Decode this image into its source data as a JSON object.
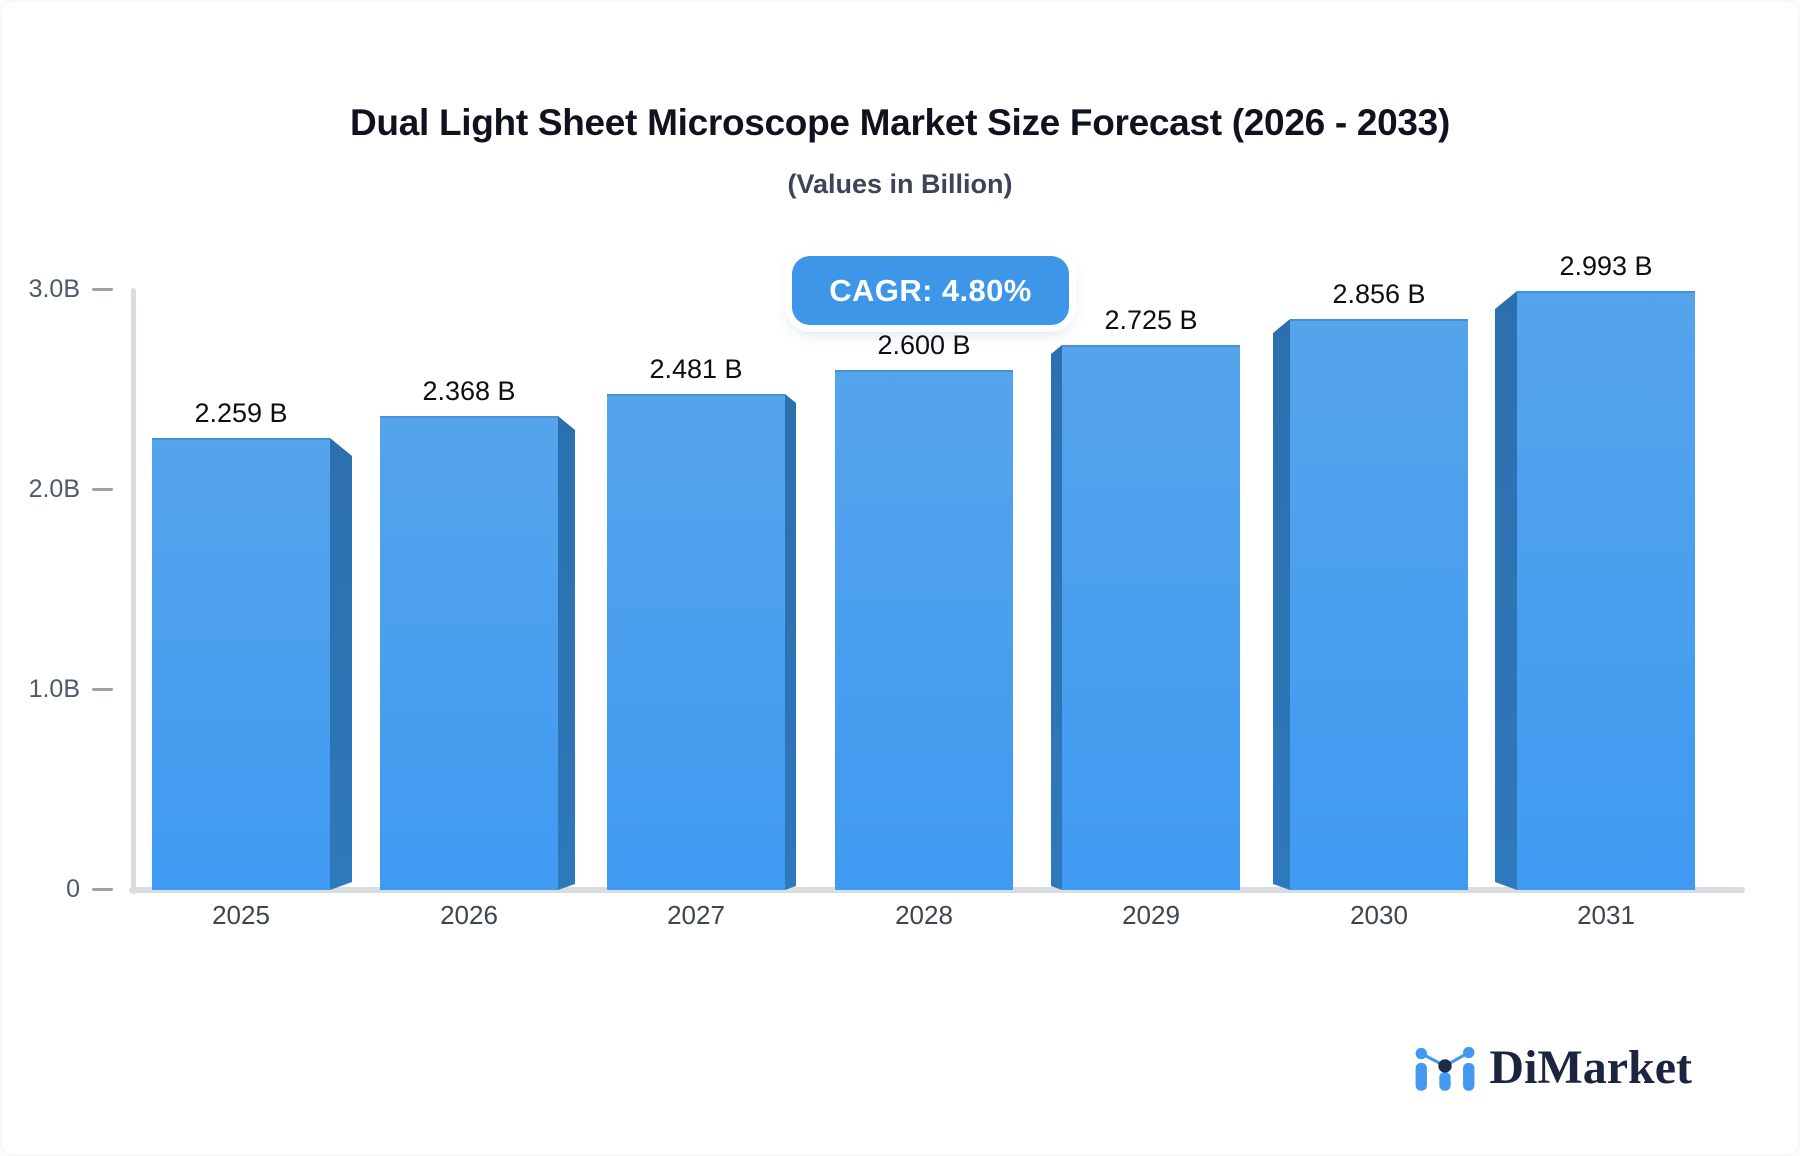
{
  "header": {
    "title": "Dual Light Sheet Microscope Market Size Forecast (2026 - 2033)",
    "subtitle": "(Values in Billion)"
  },
  "cagr": {
    "label": "CAGR: 4.80%"
  },
  "brand": {
    "name": "DiMarket",
    "icon": "dimarket-bar-chart-icon"
  },
  "chart_data": {
    "type": "bar",
    "title": "Dual Light Sheet Microscope Market Size Forecast (2026 - 2033)",
    "subtitle": "(Values in Billion)",
    "unit": "Billion",
    "cagr": "4.80%",
    "categories": [
      "2025",
      "2026",
      "2027",
      "2028",
      "2029",
      "2030",
      "2031"
    ],
    "values": [
      2.259,
      2.368,
      2.481,
      2.6,
      2.725,
      2.856,
      2.993
    ],
    "value_labels": [
      "2.259 B",
      "2.368 B",
      "2.481 B",
      "2.600 B",
      "2.725 B",
      "2.856 B",
      "2.993 B"
    ],
    "y_ticks": [
      {
        "label": "0",
        "value": 0
      },
      {
        "label": "1.0B",
        "value": 1
      },
      {
        "label": "2.0B",
        "value": 2
      },
      {
        "label": "3.0B",
        "value": 3
      }
    ],
    "ylim": [
      0,
      3.0
    ],
    "grid": false,
    "legend": false,
    "style": "3d-perspective-bars",
    "colors": {
      "bar_face_top": "#55a4ec",
      "bar_face_bottom": "#3f9af1",
      "bar_side": "#2c6fae",
      "accent_badge": "#3e96e9",
      "axis_line": "#d9dce1",
      "brand_navy": "#1b2540",
      "brand_blue": "#4399f0"
    }
  }
}
